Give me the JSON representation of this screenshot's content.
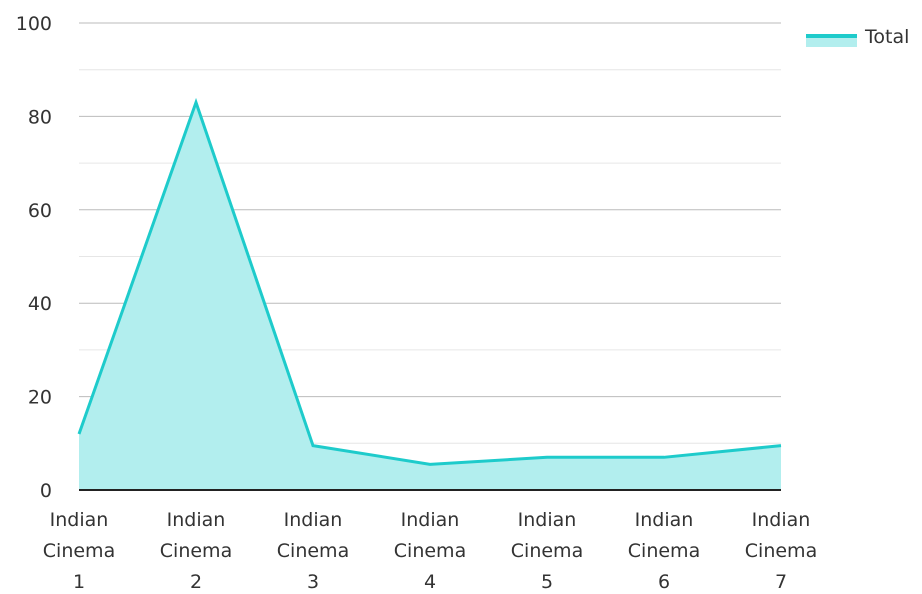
{
  "chart_data": {
    "type": "area",
    "categories": [
      [
        "Indian",
        "Cinema",
        "1"
      ],
      [
        "Indian",
        "Cinema",
        "2"
      ],
      [
        "Indian",
        "Cinema",
        "3"
      ],
      [
        "Indian",
        "Cinema",
        "4"
      ],
      [
        "Indian",
        "Cinema",
        "5"
      ],
      [
        "Indian",
        "Cinema",
        "6"
      ],
      [
        "Indian",
        "Cinema",
        "7"
      ]
    ],
    "series": [
      {
        "name": "Total",
        "values": [
          12,
          83,
          9.5,
          5.5,
          7,
          7,
          9.5
        ]
      }
    ],
    "title": "",
    "xlabel": "",
    "ylabel": "",
    "ylim": [
      0,
      100
    ],
    "yticks": [
      0,
      20,
      40,
      60,
      80,
      100
    ],
    "grid": true,
    "legend": "top-right",
    "colors": {
      "line": "#1ecbcb",
      "fill": "#b2eeee",
      "grid_major": "#bbbbbb",
      "grid_minor": "#e6e6e6",
      "axis": "#222222"
    }
  }
}
